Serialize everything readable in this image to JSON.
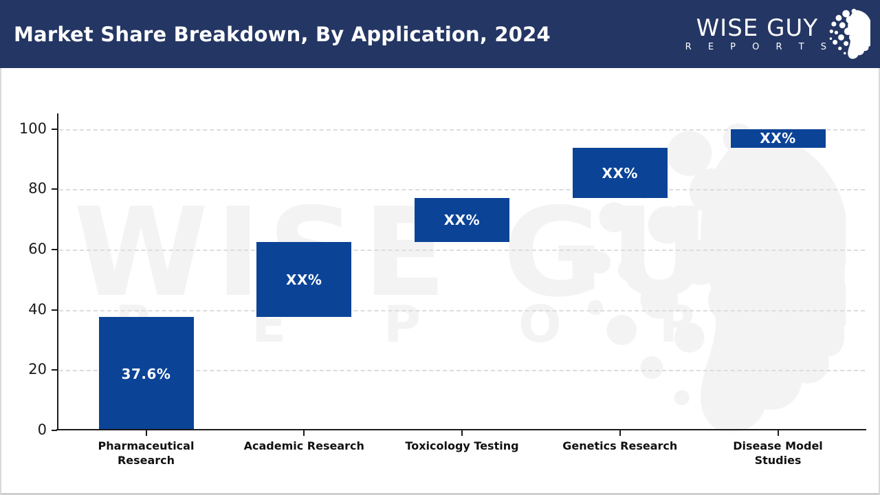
{
  "header": {
    "title": "Market Share Breakdown, By Application, 2024",
    "bg_color": "#243663",
    "logo": {
      "line1": "WISE GUY",
      "line2": "R E P O R T S",
      "head_icon": "dotted-face-profile"
    }
  },
  "watermark": {
    "line1": "WISE GUY",
    "line2": "R E P O R T S",
    "head_icon": "dotted-face-profile"
  },
  "chart_data": {
    "type": "bar",
    "subtype": "waterfall",
    "title": "Market Share Breakdown, By Application, 2024",
    "xlabel": "",
    "ylabel": "",
    "categories": [
      "Pharmaceutical\nResearch",
      "Academic Research",
      "Toxicology Testing",
      "Genetics Research",
      "Disease Model\nStudies"
    ],
    "segments": [
      {
        "label": "37.6%",
        "start": 0,
        "end": 37.6
      },
      {
        "label": "XX%",
        "start": 37.6,
        "end": 62.5
      },
      {
        "label": "XX%",
        "start": 62.5,
        "end": 77.0
      },
      {
        "label": "XX%",
        "start": 77.0,
        "end": 93.8
      },
      {
        "label": "XX%",
        "start": 93.8,
        "end": 100.0
      }
    ],
    "values": [
      37.6,
      24.9,
      14.5,
      16.8,
      6.2
    ],
    "ylim": [
      0,
      100
    ],
    "yticks": [
      0,
      20,
      40,
      60,
      80,
      100
    ],
    "grid": "horizontal-dashed",
    "legend": "none",
    "bar_color": "#0b4397",
    "bar_label_color": "#ffffff",
    "grid_color": "#dcdcdc",
    "axis_color": "#1a1a1a"
  }
}
